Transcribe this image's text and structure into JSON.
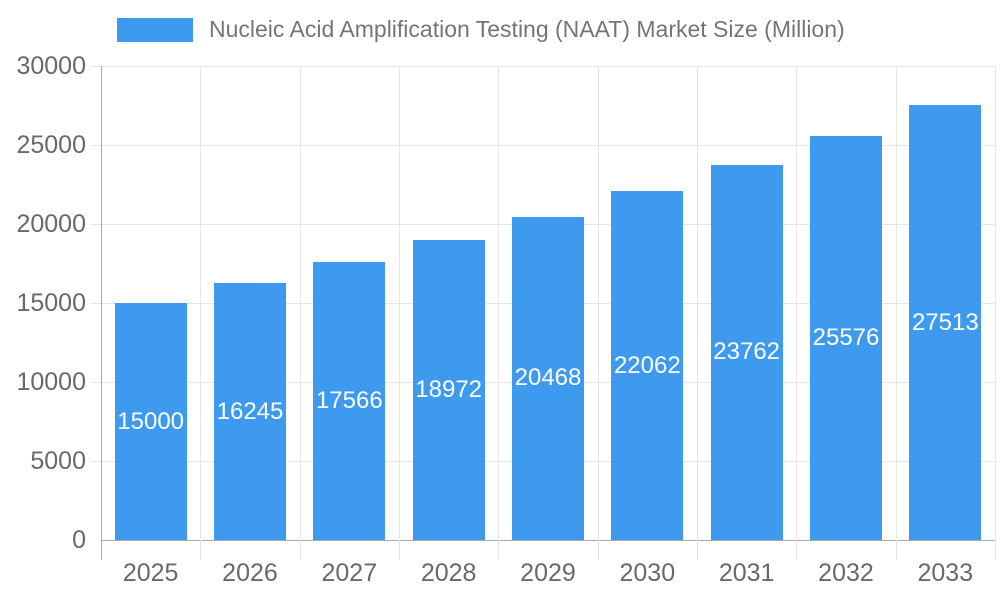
{
  "colors": {
    "accent": "#3d9aee",
    "grid": "#e6e6e6",
    "axis": "#ababab",
    "tick_text": "#696969",
    "legend_text": "#757575",
    "bar_label": "#ffffff",
    "background": "#ffffff"
  },
  "chart_data": {
    "type": "bar",
    "title": "",
    "legend_label": "Nucleic Acid Amplification Testing (NAAT) Market Size (Million)",
    "legend_position": "top-left",
    "categories": [
      "2025",
      "2026",
      "2027",
      "2028",
      "2029",
      "2030",
      "2031",
      "2032",
      "2033"
    ],
    "values": [
      15000,
      16245,
      17566,
      18972,
      20468,
      22062,
      23762,
      25576,
      27513
    ],
    "xlabel": "",
    "ylabel": "",
    "ylim": [
      0,
      30000
    ],
    "yticks": [
      0,
      5000,
      10000,
      15000,
      20000,
      25000,
      30000
    ],
    "grid": true,
    "bar_labels_visible": true,
    "bar_label_placement": "inside-center"
  }
}
